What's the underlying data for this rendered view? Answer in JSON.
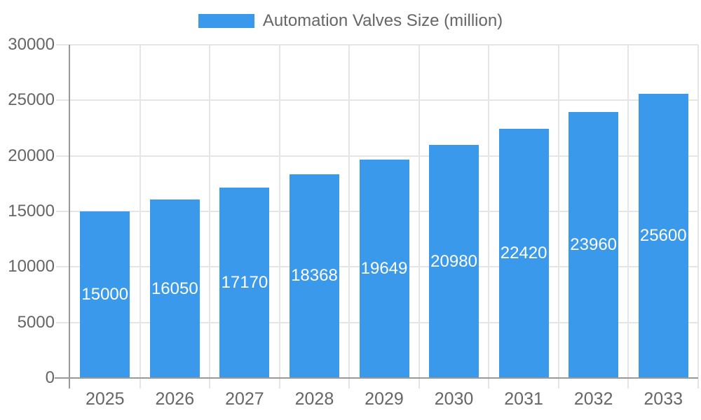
{
  "chart_data": {
    "type": "bar",
    "title": "Automation Valves Size (million)",
    "legend": [
      "Automation Valves Size (million)"
    ],
    "legend_position": "top",
    "categories": [
      "2025",
      "2026",
      "2027",
      "2028",
      "2029",
      "2030",
      "2031",
      "2032",
      "2033"
    ],
    "values": [
      15000,
      16050,
      17170,
      18368,
      19649,
      20980,
      22420,
      23960,
      25600
    ],
    "xlabel": "",
    "ylabel": "",
    "ylim": [
      0,
      30000
    ],
    "y_ticks": [
      0,
      5000,
      10000,
      15000,
      20000,
      25000,
      30000
    ],
    "grid": true,
    "colors": {
      "bar": "#3B99EC",
      "grid": "#E5E5E5",
      "axis": "#999999",
      "tick_text": "#666666",
      "bar_label": "#FFFFFF",
      "background": "#FFFFFF"
    }
  }
}
